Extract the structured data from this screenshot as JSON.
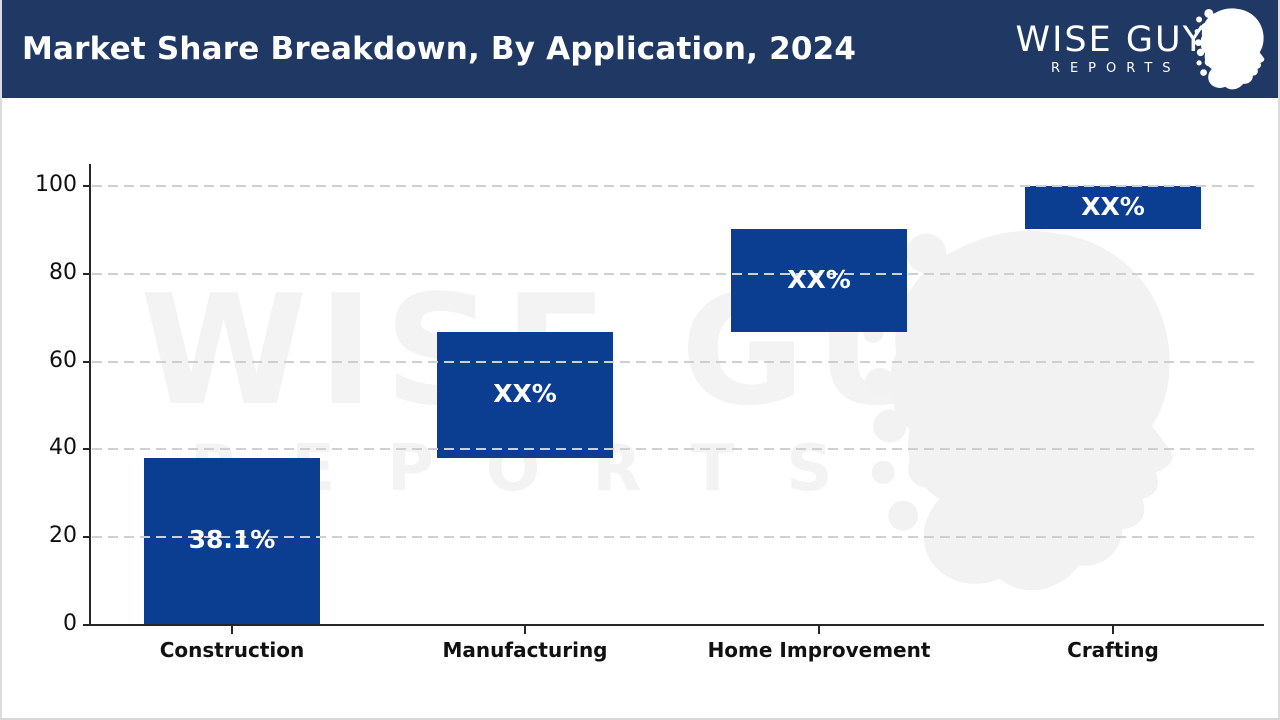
{
  "header": {
    "title": "Market Share Breakdown, By Application, 2024",
    "logo": {
      "line1": "WISE GUY",
      "line2": "REPORTS"
    }
  },
  "watermark": {
    "line1": "WISE GUY",
    "line2": "REPORTS"
  },
  "chart_data": {
    "type": "bar",
    "subtype": "waterfall",
    "title": "Market Share Breakdown, By Application, 2024",
    "categories": [
      "Construction",
      "Manufacturing",
      "Home Improvement",
      "Crafting"
    ],
    "series": [
      {
        "name": "Market Share",
        "segments": [
          {
            "category": "Construction",
            "from": 0,
            "to": 38.1,
            "label": "38.1%"
          },
          {
            "category": "Manufacturing",
            "from": 38.1,
            "to": 66.7,
            "label": "XX%"
          },
          {
            "category": "Home Improvement",
            "from": 66.7,
            "to": 90.2,
            "label": "XX%"
          },
          {
            "category": "Crafting",
            "from": 90.2,
            "to": 100,
            "label": "XX%"
          }
        ]
      }
    ],
    "xlabel": "",
    "ylabel": "",
    "yticks": [
      0,
      20,
      40,
      60,
      80,
      100
    ],
    "ylim": [
      0,
      105
    ],
    "grid": "horizontal-dashed-over-bars",
    "legend": "none",
    "colors": {
      "bar": "#0b3d91",
      "bar_label": "#ffffff",
      "gridline": "#cfcfcf",
      "axis": "#262626",
      "header_bg": "#1f3864",
      "watermark": "#f3f3f3",
      "frame_border": "#d6d6d6"
    }
  }
}
